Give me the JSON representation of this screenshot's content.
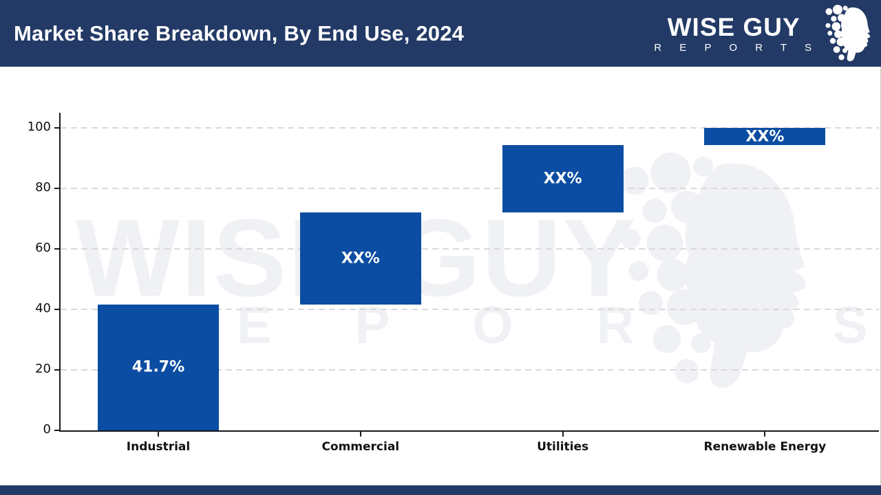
{
  "header": {
    "title": "Market Share Breakdown, By End Use, 2024",
    "background_color": "#233a66",
    "text_color": "#ffffff",
    "logo": {
      "line1": "WISE GUY",
      "line2": "R E P O R T S"
    }
  },
  "watermark": {
    "line1": "WISE GUY",
    "line2": "R E P O R T S",
    "color": "#f0f1f4"
  },
  "footer": {
    "background_color": "#233a66"
  },
  "chart_data": {
    "type": "bar",
    "subtype": "waterfall",
    "title": "Market Share Breakdown, By End Use, 2024",
    "categories": [
      "Industrial",
      "Commercial",
      "Utilities",
      "Renewable Energy"
    ],
    "segments": [
      {
        "category": "Industrial",
        "start": 0,
        "end": 41.7,
        "label": "41.7%"
      },
      {
        "category": "Commercial",
        "start": 41.7,
        "end": 72.0,
        "label": "XX%"
      },
      {
        "category": "Utilities",
        "start": 72.0,
        "end": 94.3,
        "label": "XX%"
      },
      {
        "category": "Renewable Energy",
        "start": 94.3,
        "end": 100.0,
        "label": "XX%"
      }
    ],
    "yticks": [
      0,
      20,
      40,
      60,
      80,
      100
    ],
    "ylim": [
      0,
      105
    ],
    "xlabel": "",
    "ylabel": "",
    "grid": "horizontal-dashed",
    "legend": "none",
    "bar_color": "#0b4da2",
    "bar_label_color": "#ffffff",
    "axis_color": "#1a1a1a",
    "gridline_color": "#d9d9d9"
  }
}
